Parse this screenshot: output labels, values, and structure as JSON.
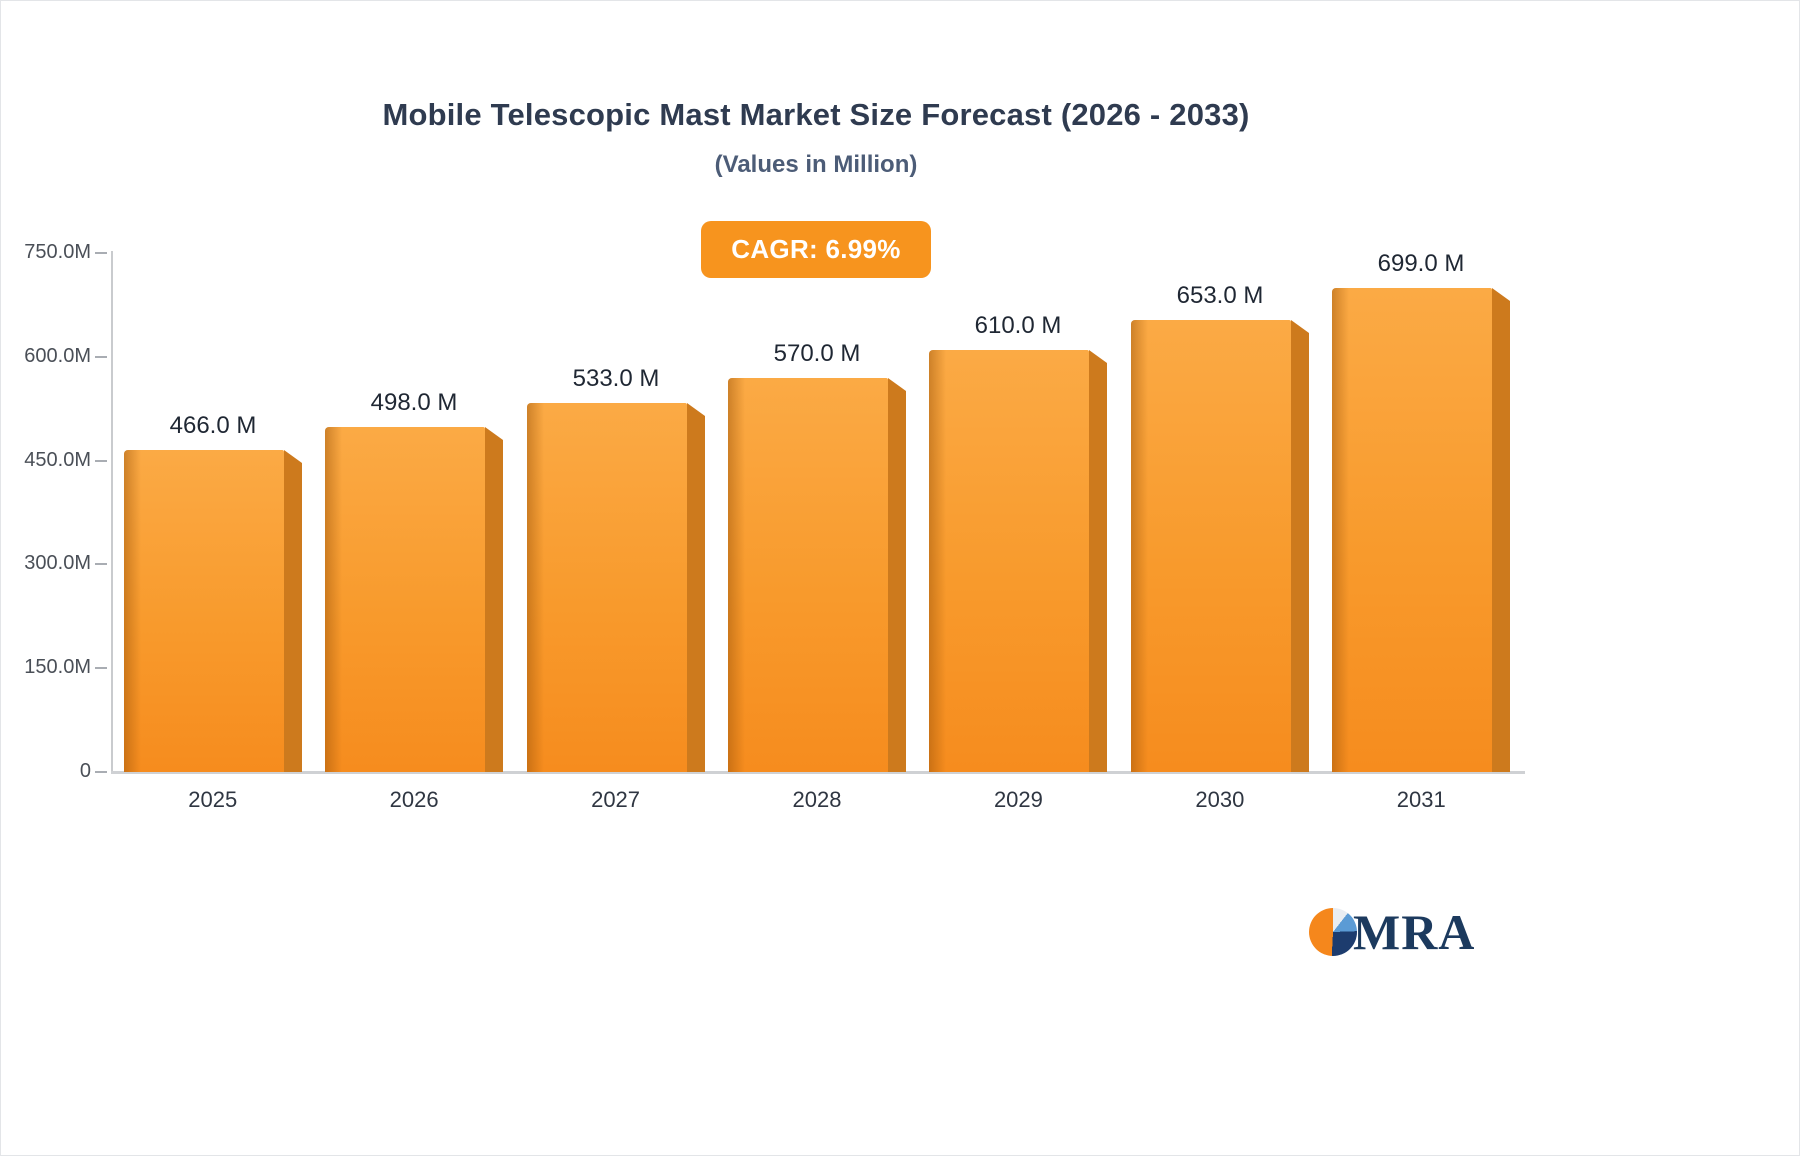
{
  "title": "Mobile Telescopic Mast Market Size Forecast (2026 - 2033)",
  "subtitle": "(Values in Million)",
  "cagr_label": "CAGR: 6.99%",
  "logo": {
    "text": "MRA"
  },
  "colors": {
    "bar_top": "#fbaa45",
    "bar_bottom": "#f68c1e",
    "bar_side": "#cd7a1d",
    "badge": "#f7941e",
    "title_text": "#2f3b50",
    "subtitle_text": "#4c5c77"
  },
  "chart_data": {
    "type": "bar",
    "title": "Mobile Telescopic Mast Market Size Forecast (2026 - 2033)",
    "subtitle": "(Values in Million)",
    "annotation": "CAGR: 6.99%",
    "categories": [
      "2025",
      "2026",
      "2027",
      "2028",
      "2029",
      "2030",
      "2031"
    ],
    "values": [
      466,
      498,
      533,
      570,
      610,
      653,
      699
    ],
    "bar_labels": [
      "466.0 M",
      "498.0 M",
      "533.0 M",
      "570.0 M",
      "610.0 M",
      "653.0 M",
      "699.0 M"
    ],
    "xlabel": "",
    "ylabel": "",
    "ylim": [
      0,
      750
    ],
    "yticks": [
      {
        "label": "750.0M",
        "value": 750
      },
      {
        "label": "600.0M",
        "value": 600
      },
      {
        "label": "450.0M",
        "value": 450
      },
      {
        "label": "300.0M",
        "value": 300
      },
      {
        "label": "150.0M",
        "value": 150
      },
      {
        "label": "0",
        "value": 0
      }
    ],
    "grid": false,
    "legend": false
  }
}
